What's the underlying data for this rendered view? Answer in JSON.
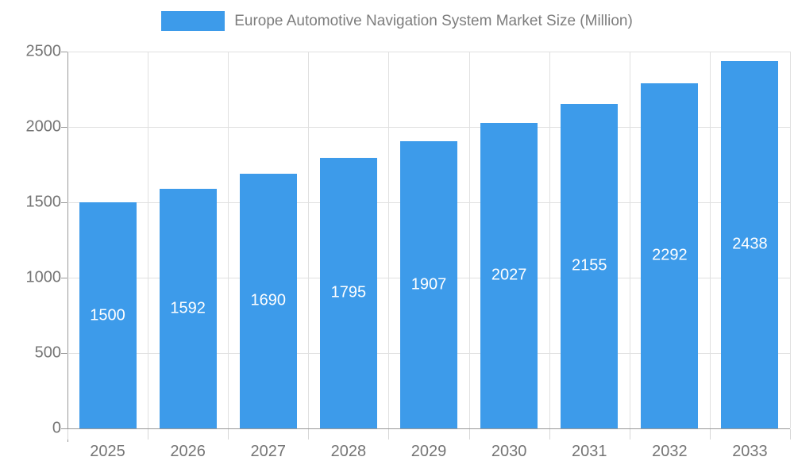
{
  "legend": {
    "label": "Europe Automotive Navigation System Market Size (Million)"
  },
  "chart_data": {
    "type": "bar",
    "title": "Europe Automotive Navigation System Market Size (Million)",
    "categories": [
      "2025",
      "2026",
      "2027",
      "2028",
      "2029",
      "2030",
      "2031",
      "2032",
      "2033"
    ],
    "values": [
      1500,
      1592,
      1690,
      1795,
      1907,
      2027,
      2155,
      2292,
      2438
    ],
    "xlabel": "",
    "ylabel": "",
    "ylim": [
      0,
      2500
    ],
    "yticks": [
      0,
      500,
      1000,
      1500,
      2000,
      2500
    ],
    "grid": true,
    "legend_position": "top-center",
    "value_label_position": "inside-center"
  },
  "colors": {
    "bar": "#3D9BEA",
    "grid": "#e0e0e0",
    "axis": "#999999",
    "tick_text": "#757575",
    "title_text": "#7d7d7d",
    "bar_label": "#ffffff"
  }
}
